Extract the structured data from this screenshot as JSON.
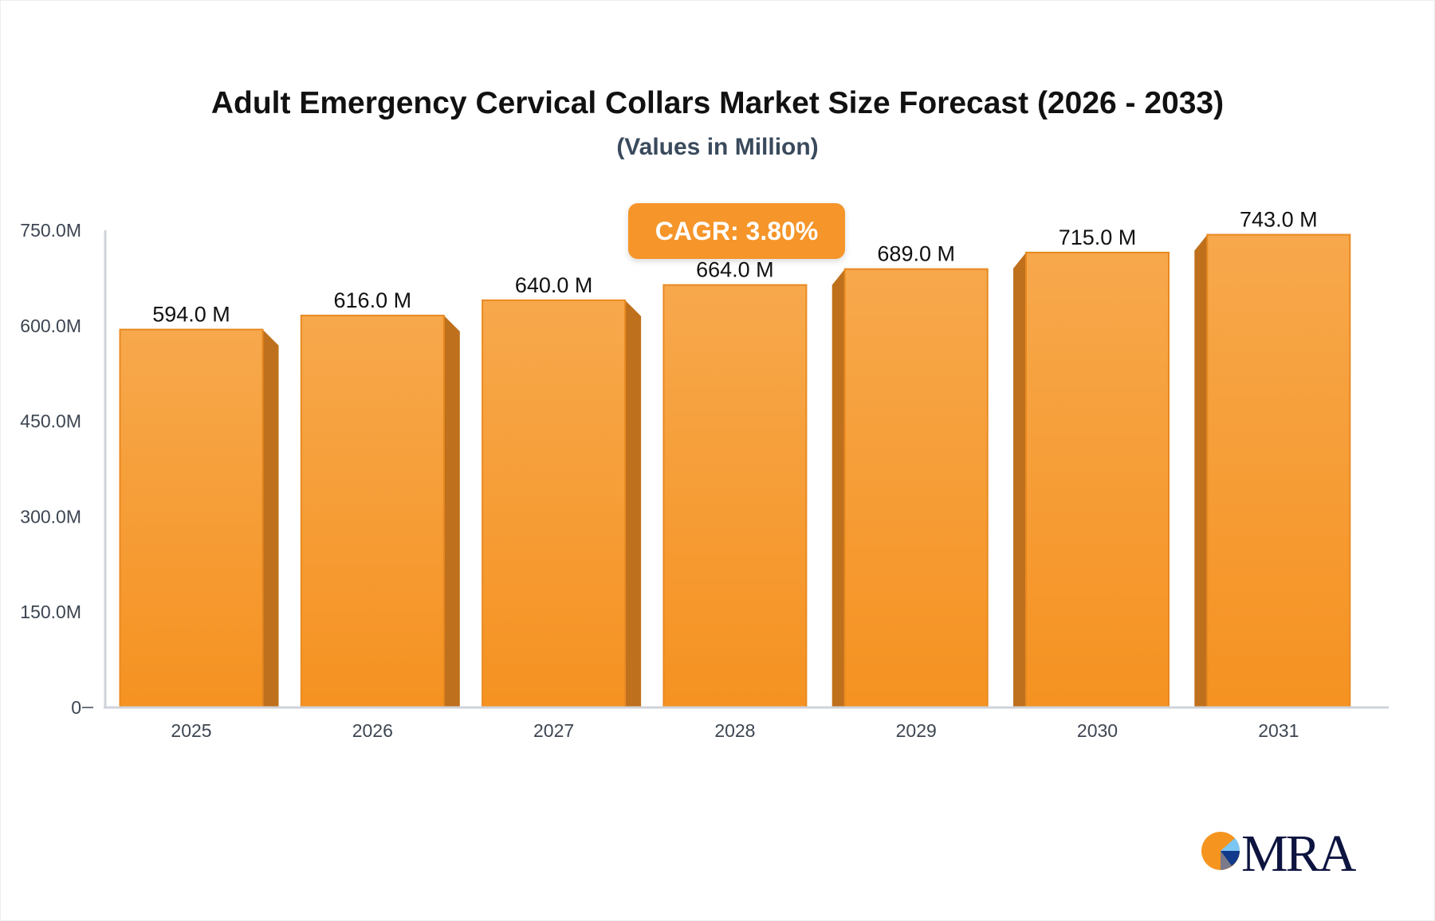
{
  "chart_data": {
    "type": "bar",
    "title": "Adult Emergency Cervical Collars Market Size Forecast (2026 - 2033)",
    "subtitle": "(Values in Million)",
    "categories": [
      "2025",
      "2026",
      "2027",
      "2028",
      "2029",
      "2030",
      "2031"
    ],
    "values": [
      594.0,
      616.0,
      640.0,
      664.0,
      689.0,
      715.0,
      743.0
    ],
    "data_labels": [
      "594.0 M",
      "616.0 M",
      "640.0 M",
      "664.0 M",
      "689.0 M",
      "715.0 M",
      "743.0 M"
    ],
    "yticks": [
      0,
      150,
      300,
      450,
      600,
      750
    ],
    "ytick_labels": [
      "0",
      "150.0M",
      "300.0M",
      "450.0M",
      "600.0M",
      "750.0M"
    ],
    "ylim": [
      0,
      750
    ],
    "grid": false,
    "bar_color": "#f7a040",
    "bar_side_color": "#bf701c"
  },
  "annotation": {
    "cagr": "CAGR: 3.80%"
  },
  "logo": {
    "text": "MRA"
  }
}
